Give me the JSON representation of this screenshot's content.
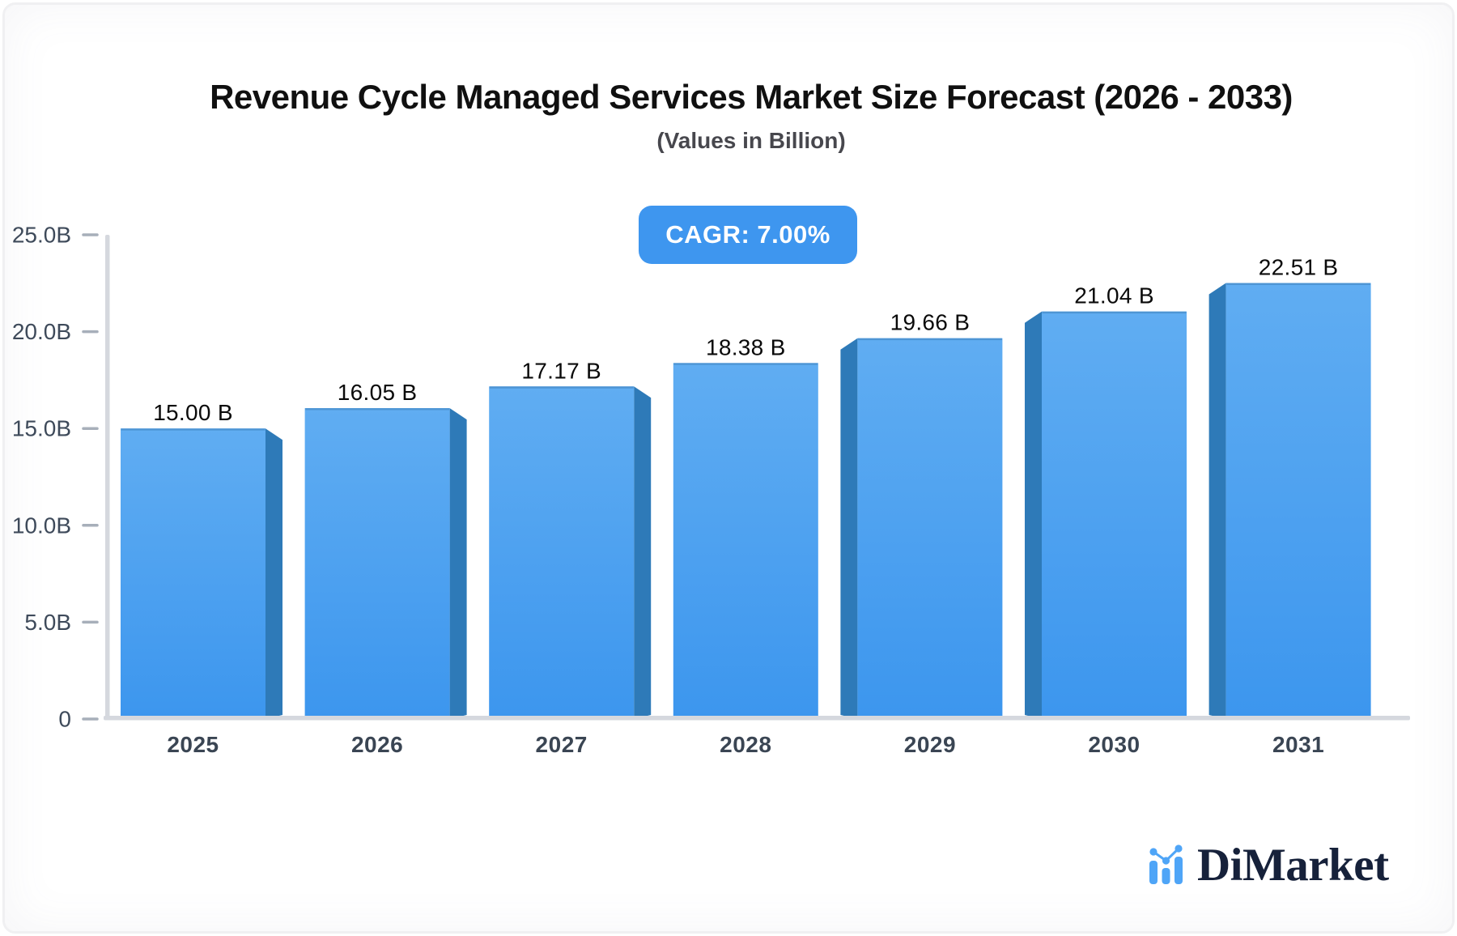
{
  "header": {
    "title": "Revenue Cycle Managed Services Market Size Forecast (2026 - 2033)",
    "subtitle": "(Values in Billion)",
    "cagr_badge": "CAGR: 7.00%"
  },
  "chart_data": {
    "type": "bar",
    "title": "Revenue Cycle Managed Services Market Size Forecast (2026 - 2033)",
    "subtitle": "(Values in Billion)",
    "cagr_percent": 7.0,
    "unit": "B",
    "categories": [
      "2025",
      "2026",
      "2027",
      "2028",
      "2029",
      "2030",
      "2031"
    ],
    "values": [
      15.0,
      16.05,
      17.17,
      18.38,
      19.66,
      21.04,
      22.51
    ],
    "value_labels": [
      "15.00 B",
      "16.05 B",
      "17.17 B",
      "18.38 B",
      "19.66 B",
      "21.04 B",
      "22.51 B"
    ],
    "ylim": [
      0,
      25
    ],
    "yticks": [
      {
        "value": 25,
        "label": "25.0B"
      },
      {
        "value": 20,
        "label": "20.0B"
      },
      {
        "value": 15,
        "label": "15.0B"
      },
      {
        "value": 10,
        "label": "10.0B"
      },
      {
        "value": 5,
        "label": "5.0B"
      },
      {
        "value": 0,
        "label": "0"
      }
    ],
    "grid": false,
    "legend": false,
    "bar_style": "3d-extruded"
  },
  "branding": {
    "name": "DiMarket",
    "icon": "mini-bar-chart-icon"
  },
  "colors": {
    "bar_front_top": "#60ADF2",
    "bar_front_bottom": "#3C96EE",
    "bar_side": "#2E7AB8",
    "bar_top_edge": "#4E95D4",
    "badge_bg": "#3E96EF",
    "badge_text": "#FFFFFF",
    "axis": "#D5D8DE",
    "tick_dash": "#A7AFBA",
    "tick_label": "#3E4A5A",
    "year_label": "#3A4553",
    "value_label": "#0A0A0A",
    "title": "#101010",
    "subtitle": "#47474D",
    "logo_text": "#16213A",
    "logo_blue": "#4FA5F7"
  }
}
